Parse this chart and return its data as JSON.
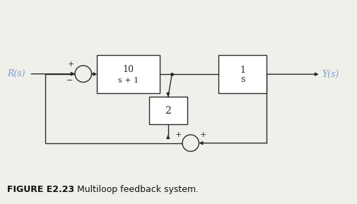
{
  "fig_width": 5.05,
  "fig_height": 2.89,
  "dpi": 100,
  "bg_color": "#f0f0eb",
  "line_color": "#2a2a2a",
  "blue_text_color": "#7799cc",
  "lw": 1.0,
  "sj1x": 115,
  "sj1y": 95,
  "sj2x": 270,
  "sj2y": 195,
  "sj_r": 12,
  "b1x": 135,
  "b1y": 68,
  "b1w": 90,
  "b1h": 55,
  "b2x": 310,
  "b2y": 68,
  "b2w": 70,
  "b2h": 55,
  "b3x": 210,
  "b3y": 128,
  "b3w": 55,
  "b3h": 40,
  "b1_num": "10",
  "b1_den": "s + 1",
  "b2_num": "1",
  "b2_den": "s",
  "b3_label": "2",
  "R_label": "R(s)",
  "Y_label": "Y(s)",
  "caption_bold": "FIGURE E2.23",
  "caption_normal": "    Multiloop feedback system.",
  "caption_fontsize": 9
}
